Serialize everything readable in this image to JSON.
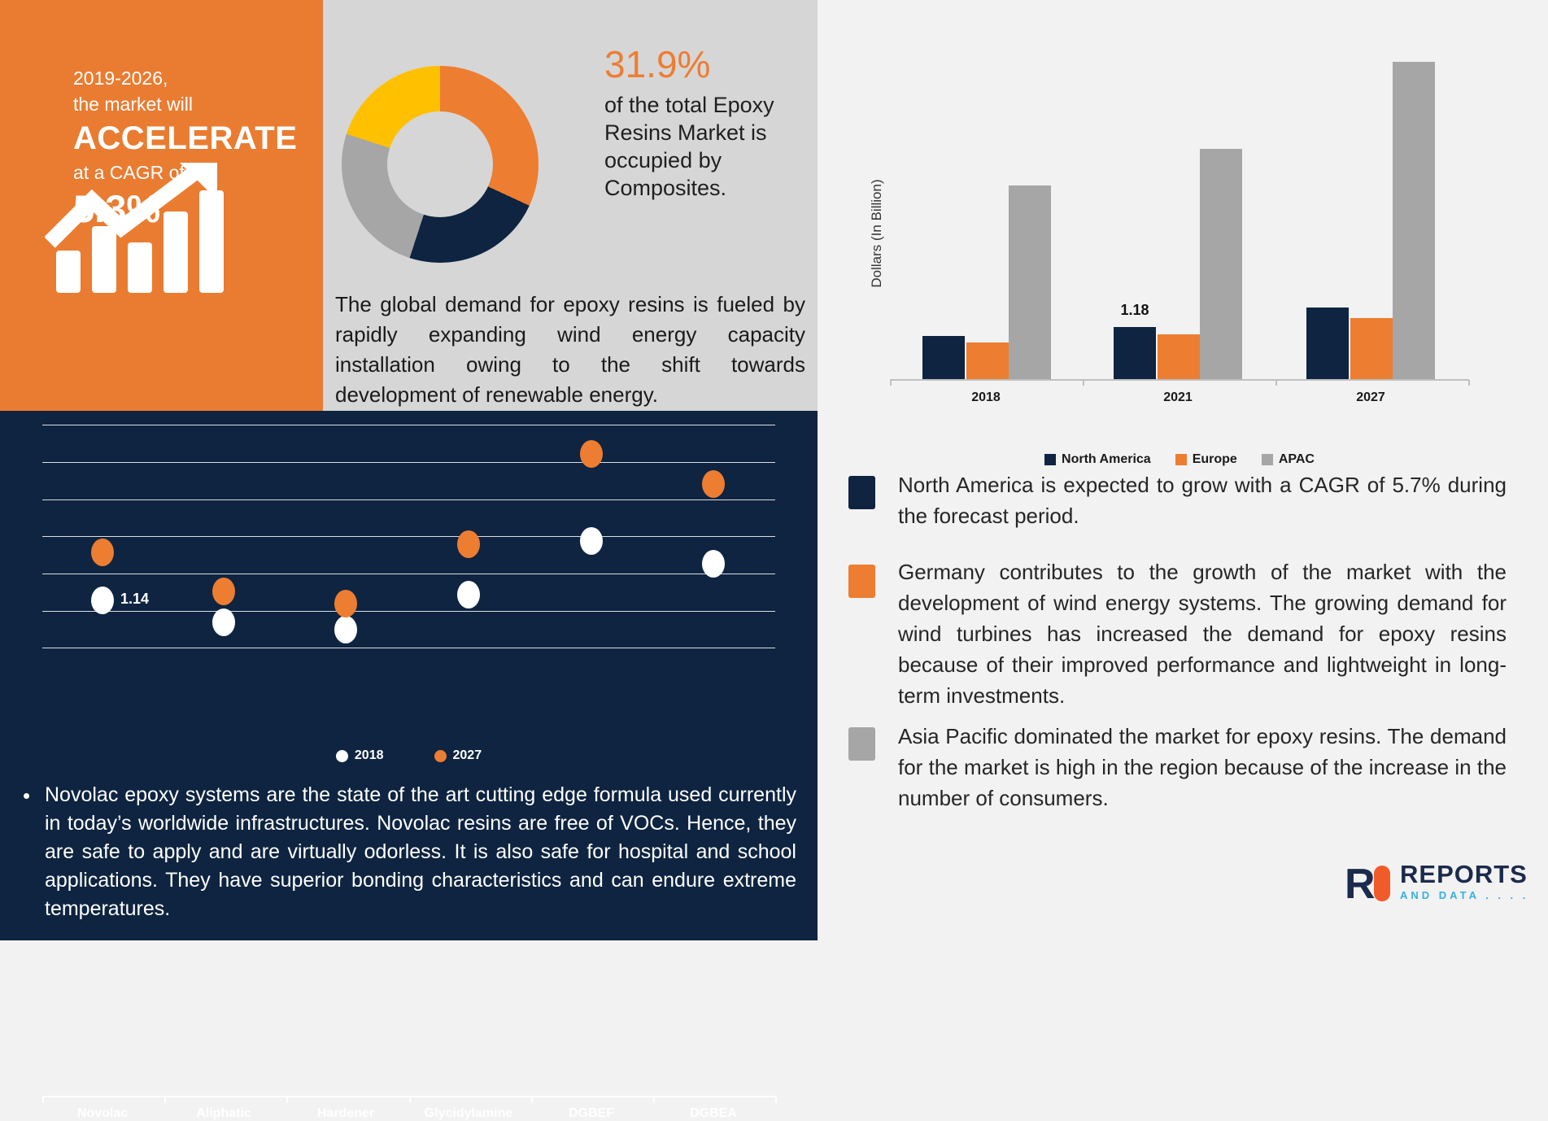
{
  "palette": {
    "orange": "#ED7D31",
    "navy": "#0E2440",
    "gray": "#A6A6A6",
    "yellow": "#FFC000",
    "panel_gray": "#D6D6D6",
    "panel_light": "#F2F2F2",
    "white": "#FFFFFF",
    "logo_navy": "#1B2B4D",
    "logo_blue": "#33B1E4",
    "logo_orange": "#F15B2A"
  },
  "accelerate_panel": {
    "period": "2019-2026,",
    "line2": "the market will",
    "emphasis": "ACCELERATE",
    "line4": "at a CAGR of",
    "cagr": "5.3%"
  },
  "composites_panel": {
    "stat": "31.9%",
    "caption": "of the total Epoxy Resins Market is occupied by Composites.",
    "paragraph": "The global demand for epoxy resins is fueled by rapidly expanding wind energy capacity installation owing to the shift towards development of renewable energy."
  },
  "regional_chart": {
    "ylabel": "Dollars (In Billion)"
  },
  "insights": [
    {
      "color": "#0E2440",
      "text": "North America is expected to grow with a CAGR of 5.7% during the forecast period."
    },
    {
      "color": "#ED7D31",
      "text": "Germany contributes to the growth of the market with the development of wind energy systems. The growing demand for wind turbines has increased the demand for epoxy resins because of their improved performance and lightweight in long-term investments."
    },
    {
      "color": "#A6A6A6",
      "text": "Asia Pacific dominated the market for epoxy resins. The demand for the market is high in the region because of the increase in the number of consumers."
    }
  ],
  "novolac_note": "Novolac epoxy systems are the state of the art cutting edge formula used currently in today’s worldwide infrastructures. Novolac resins are free of VOCs. Hence, they are safe to apply and are virtually odorless. It is also safe for hospital and school applications. They have superior bonding characteristics and can endure extreme temperatures.",
  "logo": {
    "title": "REPORTS",
    "subtitle": "AND DATA",
    "dots": ". . . ."
  },
  "chart_data": [
    {
      "type": "pie",
      "annotation": "31.9% of the total Epoxy Resins Market is occupied by Composites.",
      "segments": [
        {
          "label": "Composites",
          "value": 31.9,
          "color": "#ED7D31"
        },
        {
          "value": 23.1,
          "color": "#0E2440"
        },
        {
          "value": 25.0,
          "color": "#A6A6A6"
        },
        {
          "value": 20.0,
          "color": "#FFC000"
        }
      ],
      "donut": true
    },
    {
      "type": "bar",
      "ylabel": "Dollars (In Billion)",
      "categories": [
        "2018",
        "2021",
        "2027"
      ],
      "series": [
        {
          "name": "North America",
          "color": "#0E2440",
          "values": [
            0.97,
            1.18,
            1.62
          ]
        },
        {
          "name": "Europe",
          "color": "#ED7D31",
          "values": [
            0.83,
            1.01,
            1.38
          ]
        },
        {
          "name": "APAC",
          "color": "#A6A6A6",
          "values": [
            4.37,
            5.21,
            7.16
          ]
        }
      ],
      "ylim": [
        0,
        7.6
      ],
      "grid": false,
      "legend_position": "bottom",
      "data_labels": [
        {
          "series": "North America",
          "category": "2021",
          "text": "1.18"
        }
      ]
    },
    {
      "type": "scatter",
      "categories": [
        "Novolac",
        "Aliphatic",
        "Hardener",
        "Glycidylamine",
        "DGBEF",
        "DGBEA"
      ],
      "series": [
        {
          "name": "2018",
          "color": "#FFFFFF",
          "values": [
            1.14,
            0.84,
            0.75,
            1.21,
            1.94,
            1.63
          ]
        },
        {
          "name": "2027",
          "color": "#ED7D31",
          "values": [
            1.79,
            1.26,
            1.09,
            1.89,
            3.11,
            2.7
          ]
        }
      ],
      "ylim": [
        0,
        3.69
      ],
      "gridline_values": [
        0.5,
        1.0,
        1.5,
        2.0,
        2.5,
        3.0,
        3.5
      ],
      "grid": true,
      "legend_position": "bottom",
      "data_labels": [
        {
          "series": "2018",
          "category": "Novolac",
          "text": "1.14"
        }
      ]
    }
  ]
}
